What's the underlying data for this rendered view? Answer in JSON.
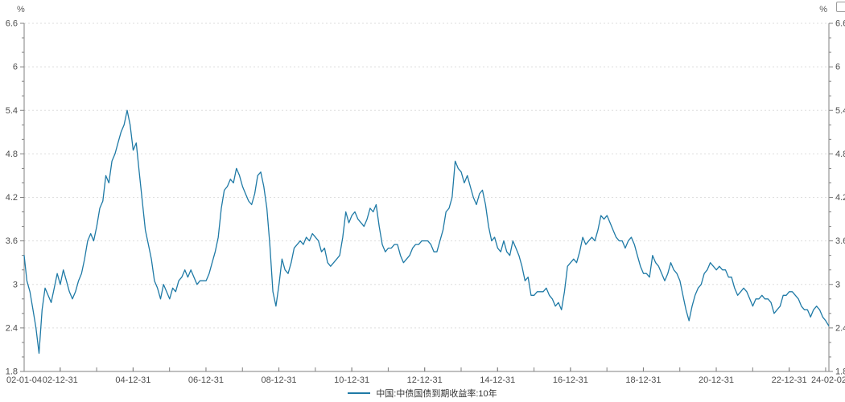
{
  "chart_data": {
    "type": "line",
    "title": "",
    "legend_position": "bottom-center",
    "grid": "horizontal-dashed",
    "y_axis": {
      "unit": "%",
      "min": 1.8,
      "max": 6.6,
      "major_step": 0.6,
      "minor_step": 0.2,
      "tick_labels": [
        "1.8",
        "2.4",
        "3",
        "3.6",
        "4.2",
        "4.8",
        "5.4",
        "6",
        "6.6"
      ],
      "sides": "both"
    },
    "x_axis": {
      "start_label": "02-01-04",
      "end_label": "24-02-02",
      "tick_labels": [
        "02-01-04",
        "02-12-31",
        "04-12-31",
        "06-12-31",
        "08-12-31",
        "10-12-31",
        "12-12-31",
        "14-12-31",
        "16-12-31",
        "18-12-31",
        "20-12-31",
        "22-12-31",
        "24-02-02"
      ],
      "minor_tick_years": [
        2002,
        2003,
        2004,
        2005,
        2006,
        2007,
        2008,
        2009,
        2010,
        2011,
        2012,
        2013,
        2014,
        2015,
        2016,
        2017,
        2018,
        2019,
        2020,
        2021,
        2022,
        2023
      ]
    },
    "series": [
      {
        "name": "中国:中债国债到期收益率:10年",
        "color": "#1f7aa6",
        "frequency": "monthly",
        "start": "2002-01",
        "end_date": "24-02-02",
        "values": [
          3.4,
          3.05,
          2.9,
          2.65,
          2.4,
          2.05,
          2.65,
          2.95,
          2.85,
          2.75,
          2.95,
          3.15,
          3.0,
          3.2,
          3.05,
          2.9,
          2.8,
          2.9,
          3.05,
          3.15,
          3.35,
          3.6,
          3.7,
          3.6,
          3.8,
          4.05,
          4.15,
          4.5,
          4.4,
          4.7,
          4.8,
          4.95,
          5.1,
          5.2,
          5.4,
          5.2,
          4.85,
          4.95,
          4.55,
          4.15,
          3.75,
          3.55,
          3.35,
          3.05,
          2.95,
          2.8,
          3.0,
          2.9,
          2.8,
          2.95,
          2.9,
          3.05,
          3.1,
          3.2,
          3.1,
          3.2,
          3.1,
          3.0,
          3.05,
          3.05,
          3.05,
          3.15,
          3.3,
          3.45,
          3.65,
          4.05,
          4.3,
          4.35,
          4.45,
          4.4,
          4.6,
          4.5,
          4.35,
          4.25,
          4.15,
          4.1,
          4.25,
          4.5,
          4.55,
          4.35,
          4.05,
          3.55,
          2.9,
          2.7,
          3.0,
          3.35,
          3.2,
          3.15,
          3.3,
          3.5,
          3.55,
          3.6,
          3.55,
          3.65,
          3.6,
          3.7,
          3.65,
          3.6,
          3.45,
          3.5,
          3.3,
          3.25,
          3.3,
          3.35,
          3.4,
          3.65,
          4.0,
          3.85,
          3.95,
          4.0,
          3.9,
          3.85,
          3.8,
          3.9,
          4.05,
          4.0,
          4.1,
          3.8,
          3.55,
          3.45,
          3.5,
          3.5,
          3.55,
          3.55,
          3.4,
          3.3,
          3.35,
          3.4,
          3.5,
          3.55,
          3.55,
          3.6,
          3.6,
          3.6,
          3.55,
          3.45,
          3.45,
          3.6,
          3.75,
          4.0,
          4.05,
          4.2,
          4.7,
          4.6,
          4.55,
          4.4,
          4.5,
          4.35,
          4.2,
          4.1,
          4.25,
          4.3,
          4.1,
          3.8,
          3.6,
          3.65,
          3.5,
          3.45,
          3.6,
          3.45,
          3.4,
          3.6,
          3.5,
          3.4,
          3.25,
          3.05,
          3.1,
          2.85,
          2.85,
          2.9,
          2.9,
          2.9,
          2.95,
          2.85,
          2.8,
          2.7,
          2.75,
          2.65,
          2.9,
          3.25,
          3.3,
          3.35,
          3.3,
          3.45,
          3.65,
          3.55,
          3.6,
          3.65,
          3.6,
          3.75,
          3.95,
          3.9,
          3.95,
          3.85,
          3.75,
          3.65,
          3.6,
          3.6,
          3.5,
          3.6,
          3.65,
          3.55,
          3.4,
          3.25,
          3.15,
          3.15,
          3.1,
          3.4,
          3.3,
          3.25,
          3.15,
          3.05,
          3.15,
          3.3,
          3.2,
          3.15,
          3.05,
          2.85,
          2.65,
          2.5,
          2.7,
          2.85,
          2.95,
          3.0,
          3.15,
          3.2,
          3.3,
          3.25,
          3.2,
          3.25,
          3.2,
          3.2,
          3.1,
          3.1,
          2.95,
          2.85,
          2.9,
          2.95,
          2.9,
          2.8,
          2.7,
          2.8,
          2.8,
          2.85,
          2.8,
          2.8,
          2.75,
          2.6,
          2.65,
          2.7,
          2.85,
          2.85,
          2.9,
          2.9,
          2.85,
          2.8,
          2.7,
          2.65,
          2.65,
          2.55,
          2.65,
          2.7,
          2.65,
          2.55,
          2.5,
          2.43
        ]
      }
    ],
    "colors": {
      "line": "#1f7aa6",
      "grid": "#dedede",
      "axis": "#808080",
      "text": "#4d4d4d"
    }
  }
}
